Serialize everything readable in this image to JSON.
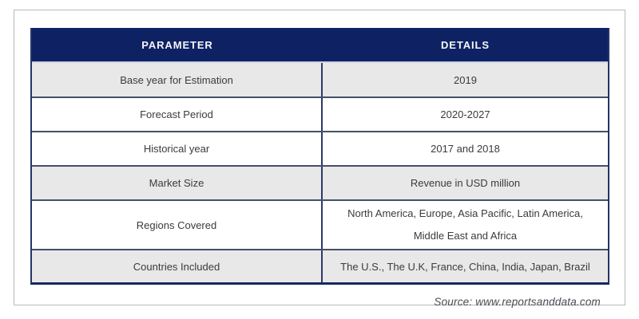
{
  "table": {
    "header": {
      "parameter": "PARAMETER",
      "details": "DETAILS"
    },
    "rows": [
      {
        "parameter": "Base year for Estimation",
        "details": "2019"
      },
      {
        "parameter": "Forecast Period",
        "details": "2020-2027"
      },
      {
        "parameter": "Historical year",
        "details": "2017 and 2018"
      },
      {
        "parameter": "Market Size",
        "details": "Revenue in USD million"
      },
      {
        "parameter": "Regions Covered",
        "details": "North America, Europe, Asia Pacific, Latin America, Middle East and Africa"
      },
      {
        "parameter": "Countries Included",
        "details": "The U.S., The  U.K, France, China, India, Japan, Brazil"
      }
    ],
    "colors": {
      "header_bg": "#0e2263",
      "header_text": "#ffffff",
      "row_alt_bg": "#e8e8e8",
      "row_bg": "#ffffff",
      "cell_text": "#3b3b3b",
      "grid_border": "#454f68",
      "outer_border": "#24356b",
      "card_border": "#b9b9b9"
    }
  },
  "footer": {
    "source": "Source: www.reportsanddata.com"
  }
}
